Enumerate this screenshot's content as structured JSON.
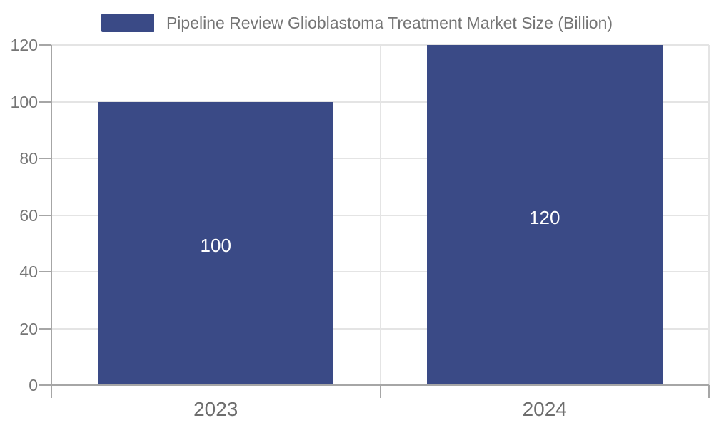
{
  "chart_data": {
    "type": "bar",
    "title": "Pipeline Review Glioblastoma Treatment Market Size (Billion)",
    "legend": {
      "label": "Pipeline Review Glioblastoma Treatment Market Size (Billion)",
      "position": "top-center"
    },
    "categories": [
      "2023",
      "2024"
    ],
    "series": [
      {
        "name": "Pipeline Review Glioblastoma Treatment Market Size (Billion)",
        "values": [
          100,
          120
        ]
      }
    ],
    "bar_labels": [
      "100",
      "120"
    ],
    "xlabel": "",
    "ylabel": "",
    "ylim": [
      0,
      120
    ],
    "yticks": [
      0,
      20,
      40,
      60,
      80,
      100,
      120
    ],
    "grid": true,
    "colors": {
      "bar": "#3A4A86",
      "bar_label_text": "#FFFFFF",
      "legend_text": "#757575",
      "ytick_text": "#757575",
      "xtick_text": "#6E6E6E",
      "gridline": "#E4E4E4",
      "axis_line": "#A6A6A6",
      "background": "#FFFFFF"
    }
  }
}
